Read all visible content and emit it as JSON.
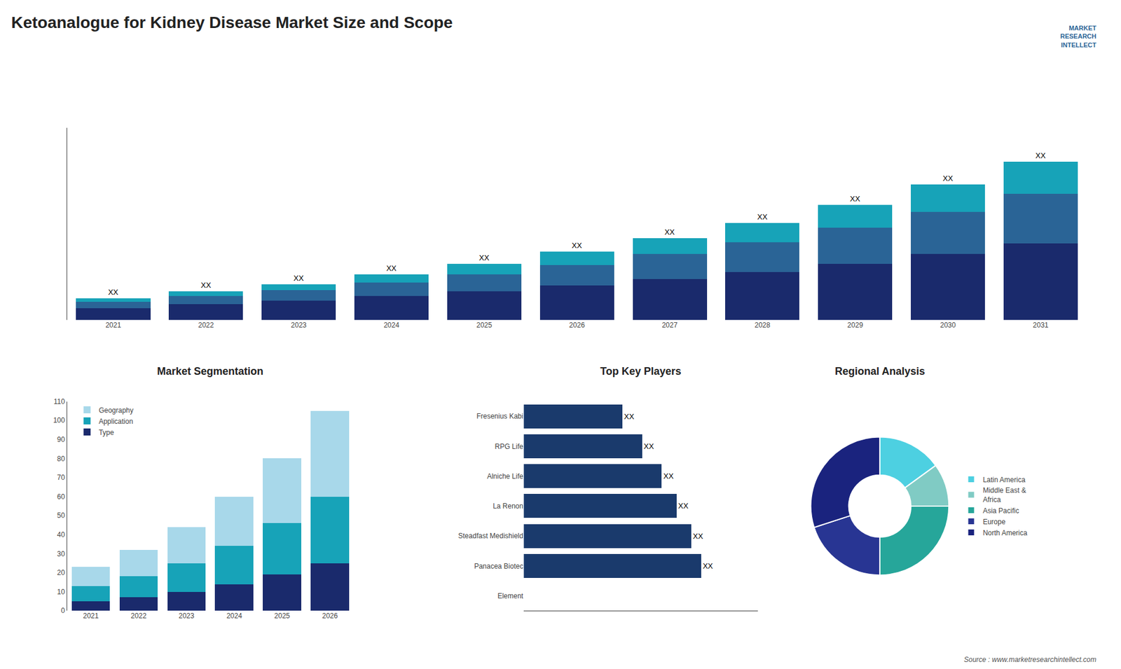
{
  "title": "Ketoanalogue for Kidney Disease Market Size and Scope",
  "annotations": [
    "MARKET\nRESEARCH\nINTELLECT",
    "Source : www.marketresearchintellect.com"
  ],
  "chart_data": [
    {
      "type": "bar",
      "stacked": true,
      "categories": [
        "2021",
        "2022",
        "2023",
        "2024",
        "2025",
        "2026",
        "2027",
        "2028",
        "2029",
        "2030",
        "2031"
      ],
      "series": [
        {
          "color": "#1a2a6c",
          "values": [
            1,
            1.3,
            1.6,
            2.0,
            2.4,
            2.9,
            3.4,
            4.0,
            4.7,
            5.5,
            6.4
          ]
        },
        {
          "color": "#2a6496",
          "values": [
            0.5,
            0.7,
            0.9,
            1.1,
            1.4,
            1.7,
            2.1,
            2.5,
            3.0,
            3.5,
            4.1
          ]
        },
        {
          "color": "#17a3b8",
          "values": [
            0.3,
            0.4,
            0.5,
            0.7,
            0.9,
            1.1,
            1.3,
            1.6,
            1.9,
            2.3,
            2.7
          ]
        }
      ],
      "ylim": [
        0,
        16
      ],
      "tick_labels": "x",
      "grid": false,
      "annotations": [
        {
          "x": "2021",
          "text": "XX"
        },
        {
          "x": "2022",
          "text": "XX"
        },
        {
          "x": "2023",
          "text": "XX"
        },
        {
          "x": "2024",
          "text": "XX"
        },
        {
          "x": "2025",
          "text": "XX"
        },
        {
          "x": "2026",
          "text": "XX"
        },
        {
          "x": "2027",
          "text": "XX"
        },
        {
          "x": "2028",
          "text": "XX"
        },
        {
          "x": "2029",
          "text": "XX"
        },
        {
          "x": "2030",
          "text": "XX"
        },
        {
          "x": "2031",
          "text": "XX"
        }
      ]
    },
    {
      "type": "bar",
      "stacked": true,
      "title": "Market Segmentation",
      "categories": [
        "2021",
        "2022",
        "2023",
        "2024",
        "2025",
        "2026"
      ],
      "series": [
        {
          "name": "Type",
          "color": "#1a2a6c",
          "values": [
            5,
            7,
            10,
            14,
            19,
            25
          ]
        },
        {
          "name": "Application",
          "color": "#17a3b8",
          "values": [
            8,
            11,
            15,
            20,
            27,
            35
          ]
        },
        {
          "name": "Geography",
          "color": "#a8d8ea",
          "values": [
            10,
            14,
            19,
            26,
            34,
            45
          ]
        }
      ],
      "ylim": [
        0,
        110
      ],
      "yticks": [
        0,
        10,
        20,
        30,
        40,
        50,
        60,
        70,
        80,
        90,
        100,
        110
      ],
      "legend": "upper left",
      "grid": false
    },
    {
      "type": "bar",
      "orientation": "horizontal",
      "title": "Top Key Players",
      "categories": [
        "Element",
        "Panacea Biotec",
        "Steadfast Medishield",
        "La Renon",
        "Alniche Life",
        "RPG Life",
        "Fresenius Kabi"
      ],
      "values": [
        0,
        72,
        68,
        62,
        56,
        48,
        40
      ],
      "color": "#1a3a6c",
      "xlim": [
        0,
        95
      ],
      "tick_labels": "y",
      "grid": false,
      "annotations": [
        {
          "y": "Panacea Biotec",
          "text": "XX"
        },
        {
          "y": "Steadfast Medishield",
          "text": "XX"
        },
        {
          "y": "La Renon",
          "text": "XX"
        },
        {
          "y": "Alniche Life",
          "text": "XX"
        },
        {
          "y": "RPG Life",
          "text": "XX"
        },
        {
          "y": "Fresenius Kabi",
          "text": "XX"
        }
      ]
    },
    {
      "type": "pie",
      "title": "Regional Analysis",
      "categories": [
        "Latin America",
        "Middle East &\nAfrica",
        "Asia Pacific",
        "Europe",
        "North America"
      ],
      "values": [
        15,
        10,
        25,
        20,
        30
      ],
      "colors": [
        "#4dd0e1",
        "#80cbc4",
        "#26a69a",
        "#283593",
        "#1a237e"
      ],
      "legend": "right"
    }
  ]
}
